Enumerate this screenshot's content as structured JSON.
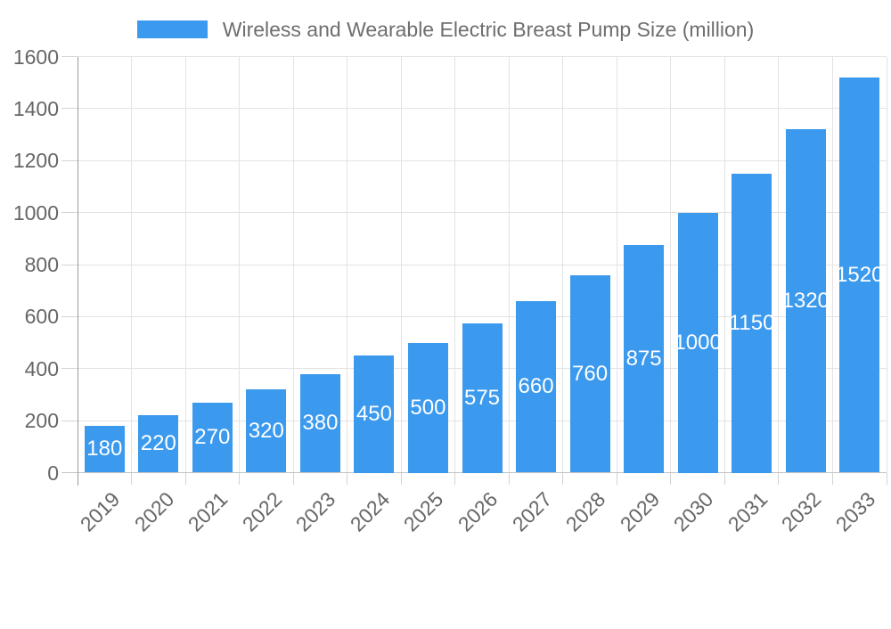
{
  "chart_data": {
    "type": "bar",
    "title": "Wireless and Wearable Electric Breast Pump Size (million)",
    "legend": {
      "label": "Wireless and Wearable Electric Breast Pump Size (million)",
      "position": "top-center"
    },
    "categories": [
      "2019",
      "2020",
      "2021",
      "2022",
      "2023",
      "2024",
      "2025",
      "2026",
      "2027",
      "2028",
      "2029",
      "2030",
      "2031",
      "2032",
      "2033"
    ],
    "series": [
      {
        "name": "Wireless and Wearable Electric Breast Pump Size (million)",
        "values": [
          180,
          220,
          270,
          320,
          380,
          450,
          500,
          575,
          660,
          760,
          875,
          1000,
          1150,
          1320,
          1520
        ]
      }
    ],
    "value_labels_visible": true,
    "xlabel": "",
    "ylabel": "",
    "ylim": [
      0,
      1600
    ],
    "y_ticks": [
      0,
      200,
      400,
      600,
      800,
      1000,
      1200,
      1400,
      1600
    ],
    "x_label_rotation_deg": -45,
    "grid": true,
    "colors": {
      "bar": "#3b99ee",
      "value_label": "#ffffff",
      "axis_text": "#666666",
      "legend_text": "#6e6e6e",
      "grid": "#e3e3e3",
      "tick": "#d4d4d4",
      "y_axis_line": "#999999",
      "bottom_line": "#c4c4c4",
      "background": "#ffffff"
    }
  }
}
